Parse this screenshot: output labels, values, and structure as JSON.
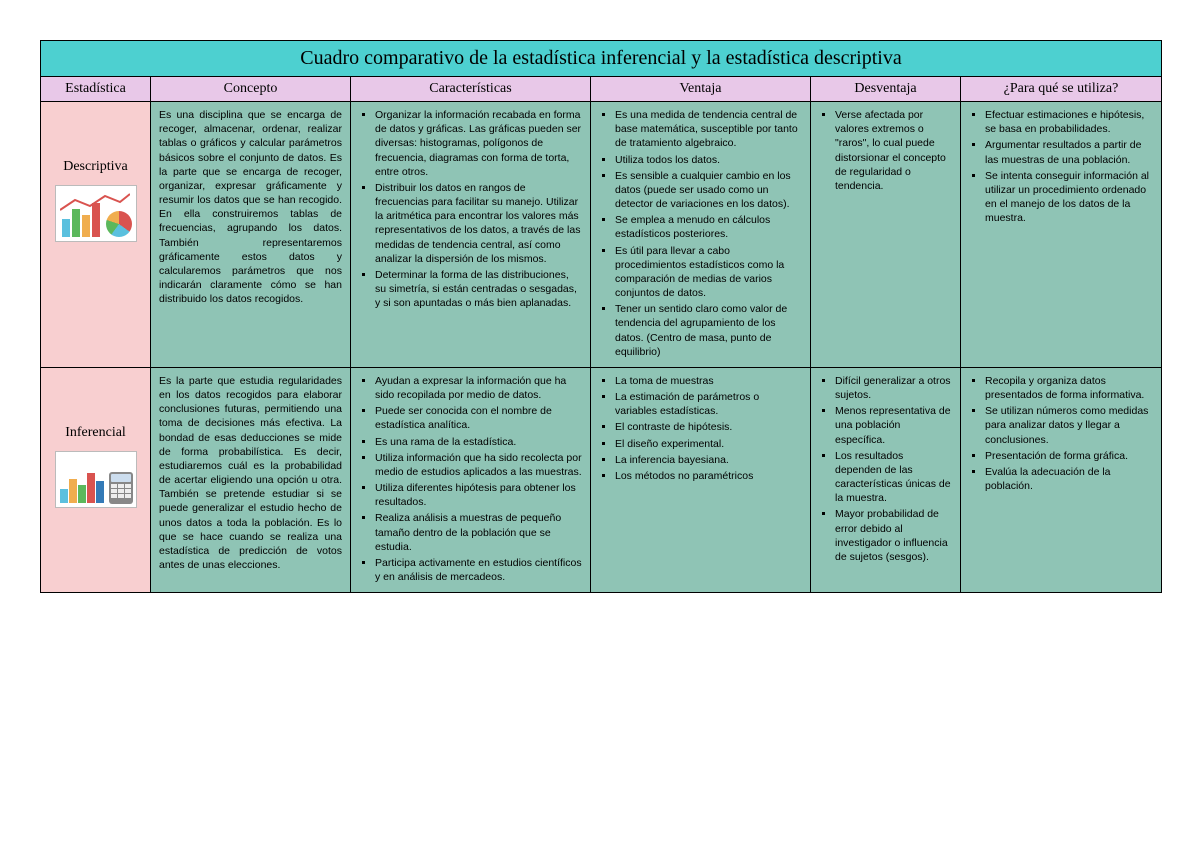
{
  "title": "Cuadro comparativo de la estadística inferencial y la estadística descriptiva",
  "headers": [
    "Estadística",
    "Concepto",
    "Características",
    "Ventaja",
    "Desventaja",
    "¿Para qué se utiliza?"
  ],
  "colors": {
    "title_bg": "#4dd0d0",
    "header_bg": "#e8c8e8",
    "rowlabel_bg": "#f8cfd0",
    "content_bg": "#8fc4b5",
    "border": "#000000"
  },
  "rows": [
    {
      "label": "Descriptiva",
      "concepto": "Es una disciplina que se encarga de recoger, almacenar, ordenar, realizar tablas o gráficos y calcular parámetros básicos sobre el conjunto de datos. Es la parte que se encarga de recoger, organizar, expresar gráficamente y resumir los datos que se han recogido. En ella construiremos tablas de frecuencias, agrupando los datos. También representaremos gráficamente estos datos y calcularemos parámetros que nos indicarán claramente cómo se han distribuido los datos recogidos.",
      "caracteristicas": [
        "Organizar la información recabada en forma de datos y gráficas. Las gráficas pueden ser diversas: histogramas, polígonos de frecuencia, diagramas con forma de torta, entre otros.",
        "Distribuir los datos en rangos de frecuencias para facilitar su manejo. Utilizar la aritmética para encontrar los valores más representativos de los datos, a través de las medidas de tendencia central, así como analizar la dispersión de los mismos.",
        "Determinar la forma de las distribuciones, su simetría, si están centradas o sesgadas, y si son apuntadas o más bien aplanadas."
      ],
      "ventaja": [
        "Es una medida de tendencia central de base matemática, susceptible por tanto de tratamiento algebraico.",
        "Utiliza todos los datos.",
        "Es sensible a cualquier cambio en los datos (puede ser usado como un detector de variaciones en los datos).",
        "Se emplea a menudo en cálculos estadísticos posteriores.",
        "Es útil para llevar a cabo procedimientos estadísticos como la comparación de medias de varios conjuntos de datos.",
        "Tener un sentido claro como valor de tendencia del agrupamiento de los datos. (Centro de masa, punto de equilibrio)"
      ],
      "desventaja": [
        "Verse afectada por valores extremos o \"raros\", lo cual puede distorsionar el concepto de regularidad o tendencia."
      ],
      "uso": [
        "Efectuar estimaciones e hipótesis, se basa en probabilidades.",
        "Argumentar resultados a partir de las muestras de una población.",
        "Se intenta conseguir información al utilizar un procedimiento ordenado en el manejo de los datos de la muestra."
      ]
    },
    {
      "label": "Inferencial",
      "concepto": "Es la parte que estudia regularidades en los datos recogidos para elaborar conclusiones futuras, permitiendo una toma de decisiones más efectiva. La bondad de esas deducciones se mide de forma probabilística. Es decir, estudiaremos cuál es la probabilidad de acertar eligiendo una opción u otra. También se pretende estudiar si se puede generalizar el estudio hecho de unos datos a toda la población. Es lo que se hace cuando se realiza una estadística de predicción de votos antes de unas elecciones.",
      "caracteristicas": [
        "Ayudan a expresar la información que ha sido recopilada por medio de datos.",
        "Puede ser conocida con el nombre de estadística analítica.",
        "Es una rama de la estadística.",
        "Utiliza información que ha sido recolecta por medio de estudios aplicados a las muestras.",
        "Utiliza diferentes hipótesis para obtener los resultados.",
        "Realiza análisis a muestras de pequeño tamaño dentro de la población que se estudia.",
        "Participa activamente en estudios científicos y en análisis de mercadeos."
      ],
      "ventaja": [
        "La toma de muestras",
        "La estimación de parámetros o variables estadísticas.",
        "El contraste de hipótesis.",
        "El diseño experimental.",
        "La inferencia bayesiana.",
        "Los métodos no paramétricos"
      ],
      "desventaja": [
        "Difícil generalizar a otros sujetos.",
        "Menos representativa de una población específica.",
        "Los resultados dependen de las características únicas de la muestra.",
        "Mayor probabilidad de error debido al investigador o influencia de sujetos (sesgos)."
      ],
      "uso": [
        "Recopila y organiza datos presentados de forma informativa.",
        "Se utilizan números como medidas para analizar datos y llegar a conclusiones.",
        "Presentación de forma gráfica.",
        "Evalúa la adecuación de la población."
      ]
    }
  ]
}
